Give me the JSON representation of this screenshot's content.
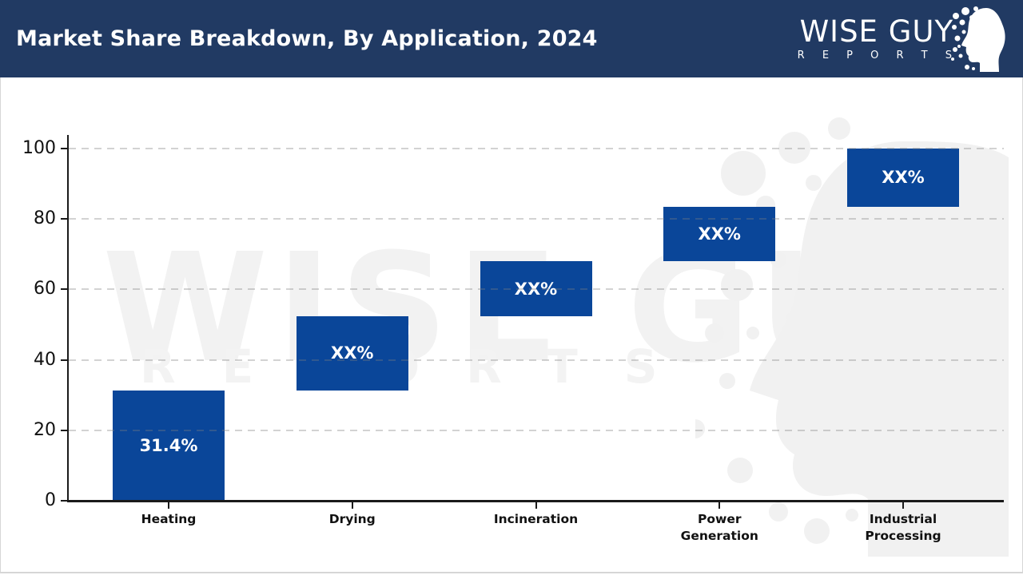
{
  "header": {
    "title": "Market Share Breakdown, By Application, 2024",
    "logo": {
      "line1": "WISE GUY",
      "line2": "REPORTS"
    }
  },
  "watermark": {
    "line1": "WISE GUY",
    "line2": "REPORTS"
  },
  "colors": {
    "header_bg": "#213a63",
    "bar": "#0a4699",
    "bar_label": "#ffffff",
    "grid": "#d9d9d9",
    "axis": "#1a1a1a",
    "watermark": "#f2f2f2"
  },
  "chart_data": {
    "type": "bar",
    "subtype": "waterfall",
    "title": "Market Share Breakdown, By Application, 2024",
    "categories": [
      "Heating",
      "Drying",
      "Incineration",
      "Power Generation",
      "Industrial Processing"
    ],
    "segments": [
      {
        "category": "Heating",
        "start": 0,
        "end": 31.4,
        "label": "31.4%"
      },
      {
        "category": "Drying",
        "start": 31.4,
        "end": 52.4,
        "label": "XX%"
      },
      {
        "category": "Incineration",
        "start": 52.4,
        "end": 68.0,
        "label": "XX%"
      },
      {
        "category": "Power Generation",
        "start": 68.0,
        "end": 83.5,
        "label": "XX%"
      },
      {
        "category": "Industrial Processing",
        "start": 83.5,
        "end": 100,
        "label": "XX%"
      }
    ],
    "xlabel": "",
    "ylabel": "",
    "ylim": [
      0,
      100
    ],
    "yticks": [
      0,
      20,
      40,
      60,
      80,
      100
    ],
    "grid": "horizontal-dashed",
    "legend": "none"
  }
}
